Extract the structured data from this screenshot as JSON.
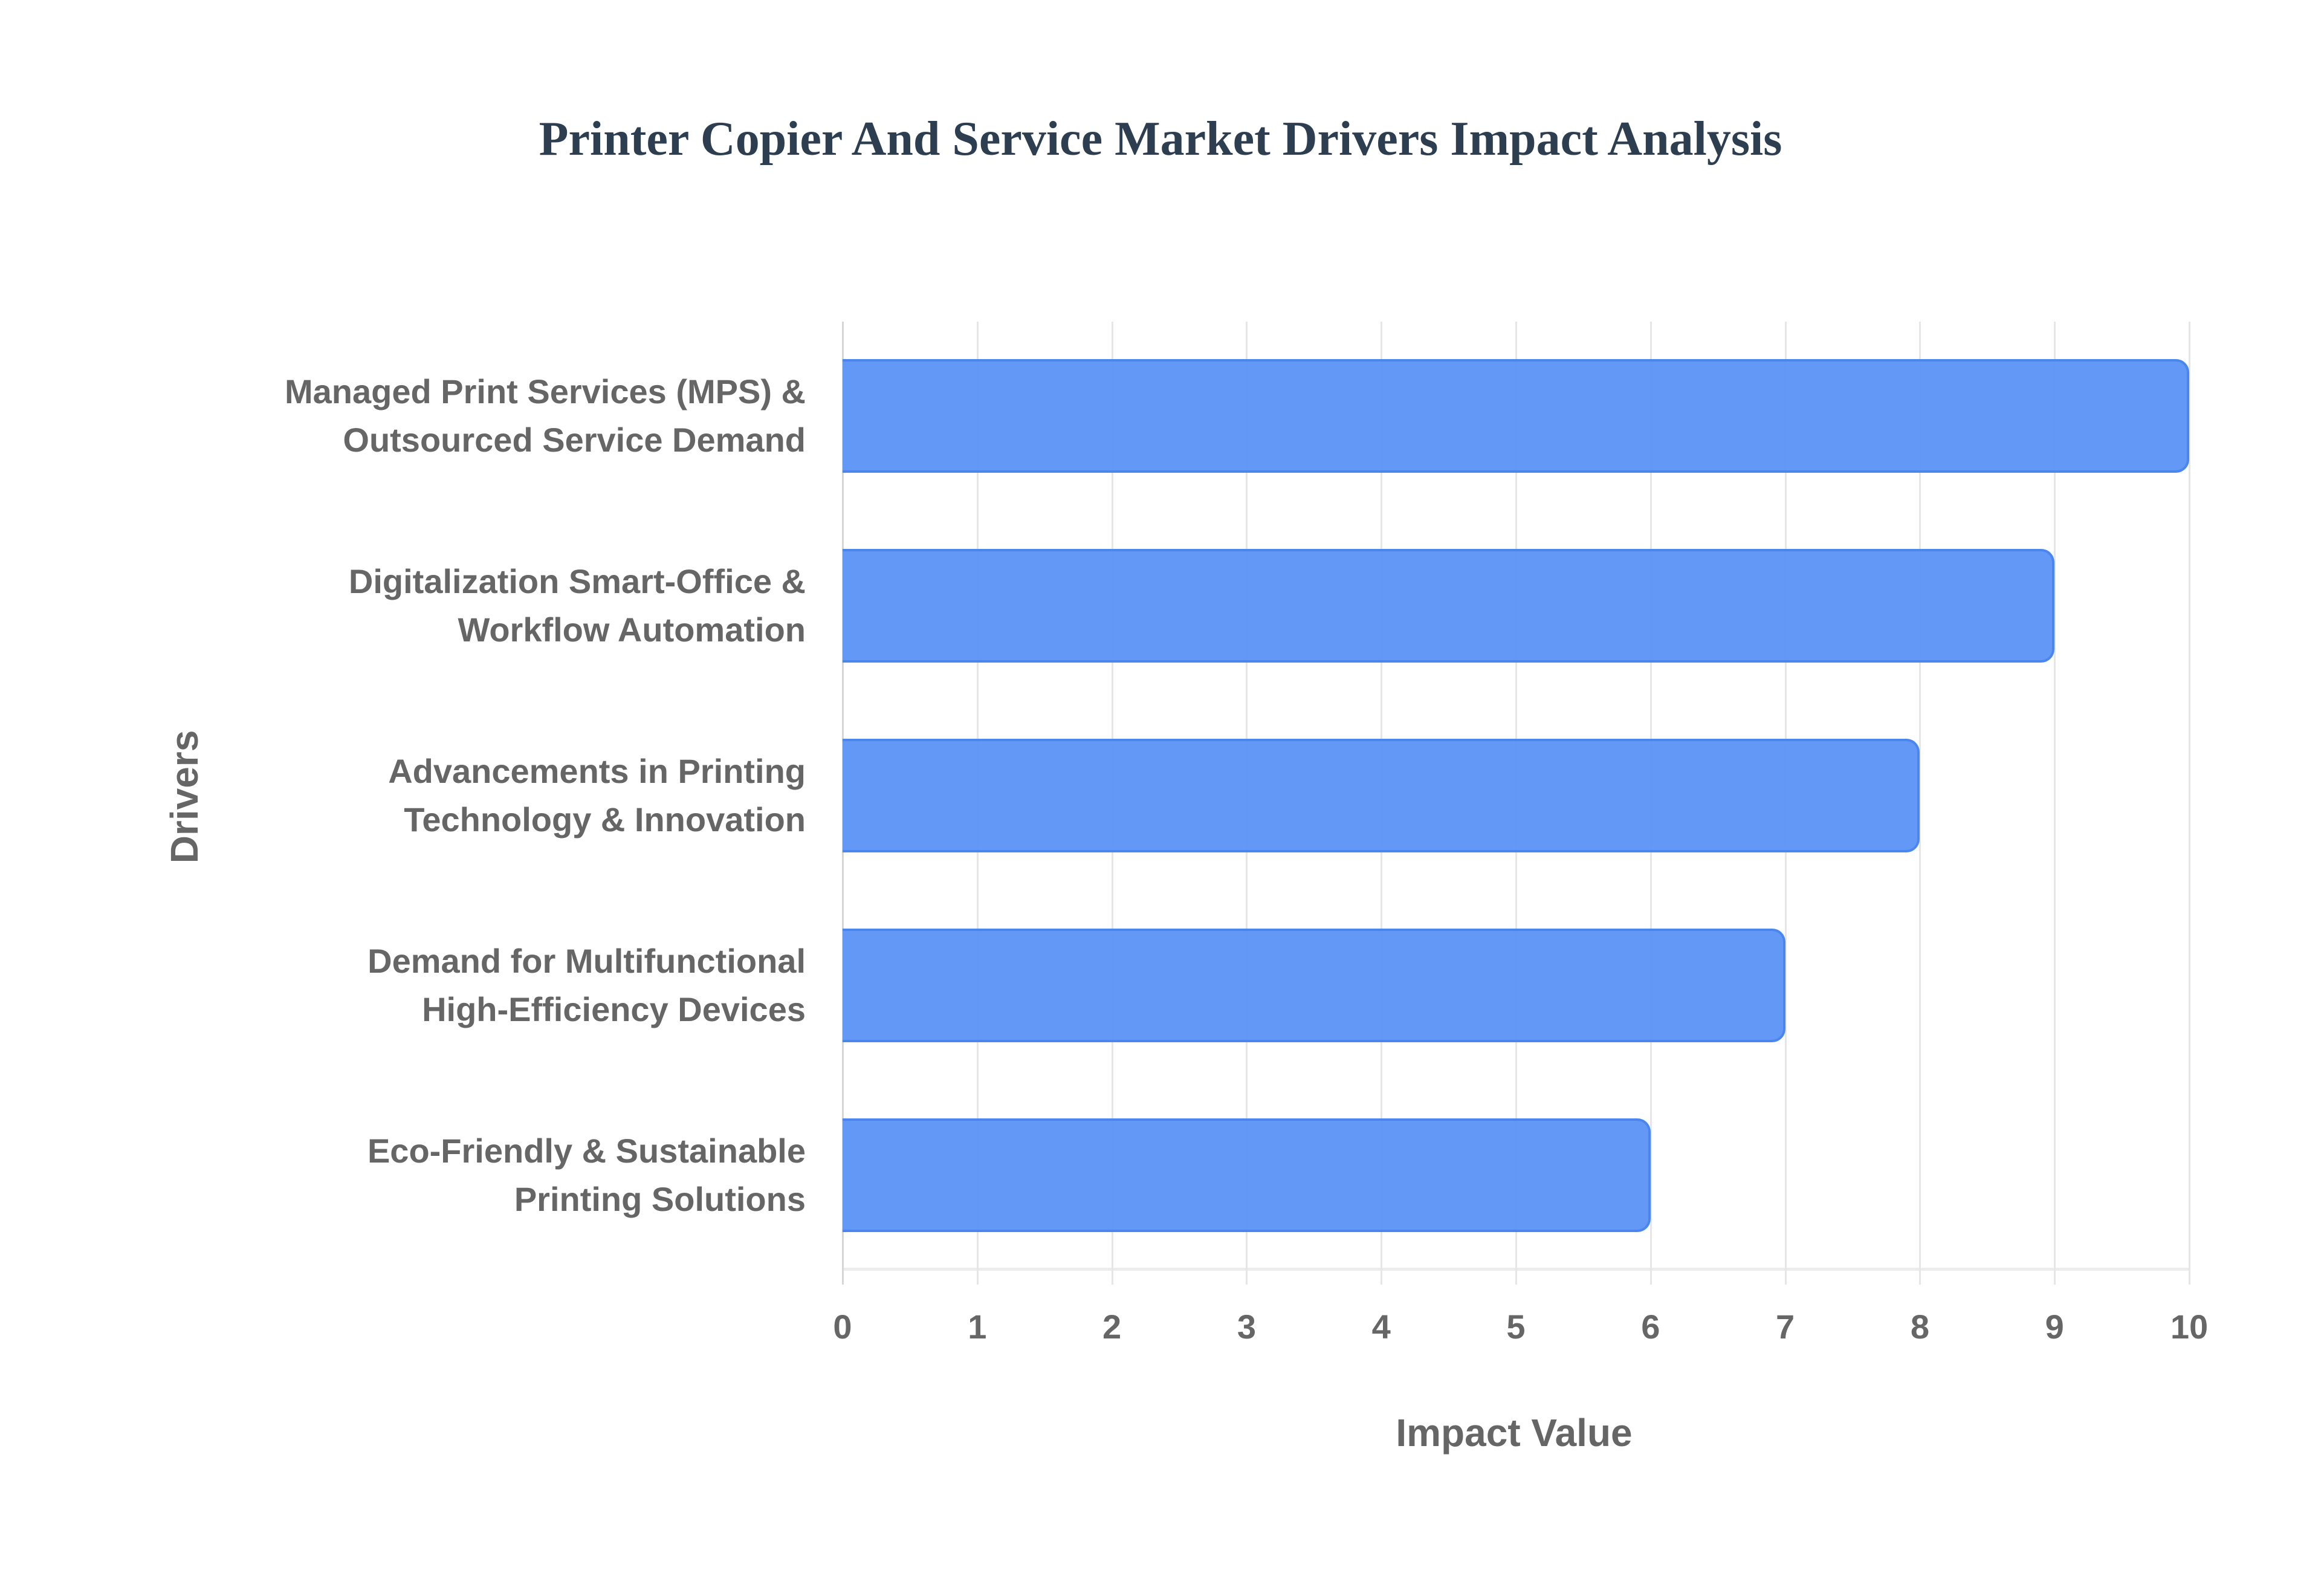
{
  "chart_data": {
    "type": "bar",
    "orientation": "horizontal",
    "title": "Printer Copier And Service Market Drivers Impact Analysis",
    "xlabel": "Impact Value",
    "ylabel": "Drivers",
    "xlim": [
      0,
      10
    ],
    "x_ticks": [
      "0",
      "1",
      "2",
      "3",
      "4",
      "5",
      "6",
      "7",
      "8",
      "9",
      "10"
    ],
    "grid": true,
    "legend": null,
    "categories": [
      "Managed Print Services (MPS) & Outsourced Service Demand",
      "Digitalization Smart-Office & Workflow Automation",
      "Advancements in Printing Technology & Innovation",
      "Demand for Multifunctional High-Efficiency Devices",
      "Eco-Friendly & Sustainable Printing Solutions"
    ],
    "category_lines": [
      [
        "Managed Print Services (MPS) &",
        "Outsourced Service Demand"
      ],
      [
        "Digitalization Smart-Office &",
        "Workflow Automation"
      ],
      [
        "Advancements in Printing",
        "Technology & Innovation"
      ],
      [
        "Demand for Multifunctional",
        "High-Efficiency Devices"
      ],
      [
        "Eco-Friendly & Sustainable",
        "Printing Solutions"
      ]
    ],
    "values": [
      10,
      9,
      8,
      7,
      6
    ],
    "colors": {
      "bar_fill": "#5e97f6",
      "bar_border": "#4a86ec",
      "title": "#2c3e50",
      "text": "#666666",
      "grid": "#e6e6e6"
    }
  }
}
